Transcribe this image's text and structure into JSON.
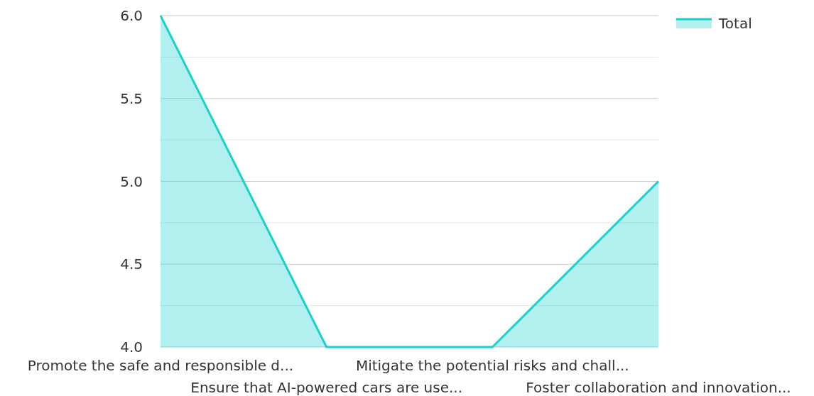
{
  "chart_data": {
    "type": "area",
    "categories": [
      "Promote the safe and responsible d...",
      "Ensure that AI-powered cars are use...",
      "Mitigate the potential risks and chall...",
      "Foster collaboration and innovation..."
    ],
    "series": [
      {
        "name": "Total",
        "color": "#1ccfcf",
        "values": [
          6,
          4,
          4,
          5
        ]
      }
    ],
    "ylim": [
      4,
      6
    ],
    "yticks": [
      {
        "value": 4,
        "label": "4.0"
      },
      {
        "value": 4.25,
        "label": null
      },
      {
        "value": 4.5,
        "label": "4.5"
      },
      {
        "value": 4.75,
        "label": null
      },
      {
        "value": 5,
        "label": "5.0"
      },
      {
        "value": 5.25,
        "label": null
      },
      {
        "value": 5.5,
        "label": "5.5"
      },
      {
        "value": 5.75,
        "label": null
      },
      {
        "value": 6,
        "label": "6.0"
      }
    ],
    "grid": "y",
    "legend": "top right"
  }
}
